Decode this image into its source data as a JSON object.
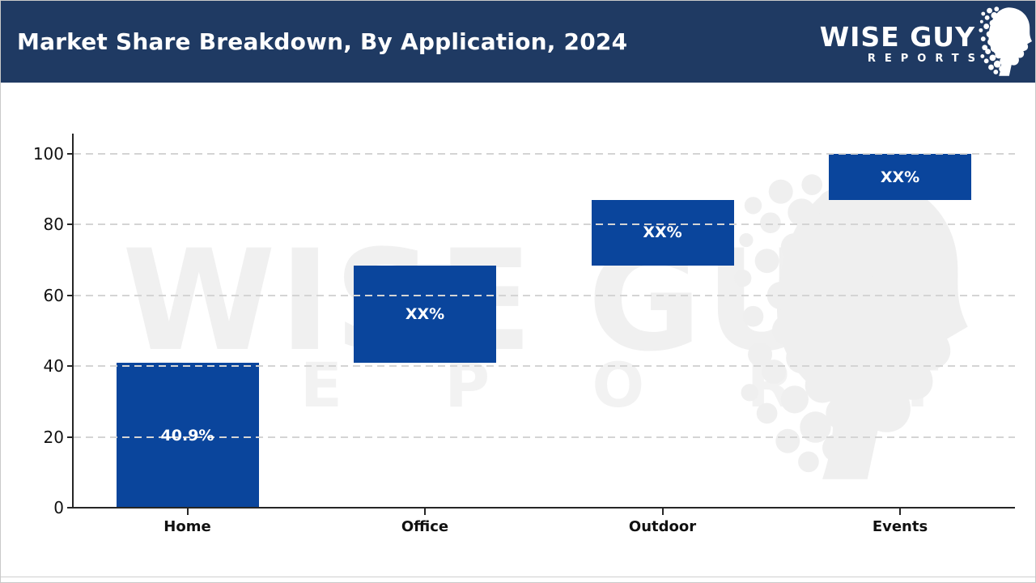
{
  "header": {
    "title": "Market Share Breakdown, By Application, 2024",
    "background_color": "#1f3a63",
    "logo": {
      "wordmark": "WISE GUY",
      "subtext": "REPORTS",
      "face_icon": "dotted-head-profile"
    }
  },
  "watermark": {
    "line1": "WISE GUY",
    "line2": "R E P O R T S",
    "face_icon": "dotted-head-profile",
    "color": "#f0f0f0"
  },
  "chart_data": {
    "type": "bar",
    "subtype": "waterfall",
    "title": "Market Share Breakdown, By Application, 2024",
    "categories": [
      "Home",
      "Office",
      "Outdoor",
      "Events"
    ],
    "bars": [
      {
        "category": "Home",
        "start": 0,
        "end": 40.9,
        "label": "40.9%"
      },
      {
        "category": "Office",
        "start": 40.9,
        "end": 68.5,
        "label": "XX%"
      },
      {
        "category": "Outdoor",
        "start": 68.5,
        "end": 86.9,
        "label": "XX%"
      },
      {
        "category": "Events",
        "start": 86.9,
        "end": 100,
        "label": "XX%"
      }
    ],
    "ylim": [
      0,
      105
    ],
    "yticks": [
      0,
      20,
      40,
      60,
      80,
      100
    ],
    "bar_color": "#0a459c",
    "grid": "dashed-horizontal",
    "grid_above_bars": true,
    "legend": "none",
    "xlabel": "",
    "ylabel": ""
  }
}
